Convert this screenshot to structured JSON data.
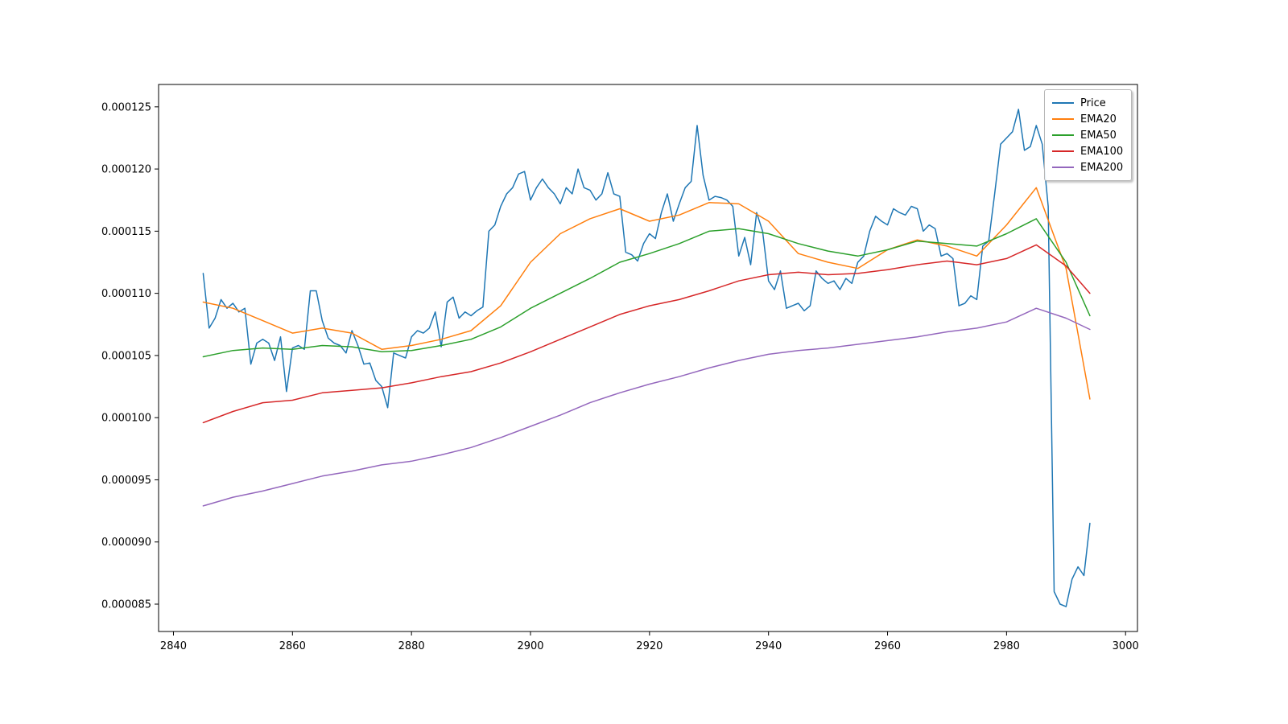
{
  "chart_data": {
    "type": "line",
    "title": "",
    "xlabel": "",
    "ylabel": "",
    "grid": false,
    "legend_position": "upper right",
    "xlim": [
      2837.5,
      3002
    ],
    "ylim": [
      8.28e-05,
      0.0001268
    ],
    "x_ticks": [
      2840,
      2860,
      2880,
      2900,
      2920,
      2940,
      2960,
      2980,
      3000
    ],
    "y_ticks": [
      8.5e-05,
      9e-05,
      9.5e-05,
      0.0001,
      0.000105,
      0.00011,
      0.000115,
      0.00012,
      0.000125
    ],
    "y_tick_labels": [
      "0.000085",
      "0.000090",
      "0.000095",
      "0.000100",
      "0.000105",
      "0.000110",
      "0.000115",
      "0.000120",
      "0.000125"
    ],
    "series": [
      {
        "name": "Price",
        "color": "#1f77b4",
        "x_start": 2845,
        "x_step": 1,
        "y": [
          0.0001116,
          0.0001072,
          0.000108,
          0.0001095,
          0.0001088,
          0.0001092,
          0.0001085,
          0.0001088,
          0.0001043,
          0.000106,
          0.0001063,
          0.000106,
          0.0001046,
          0.0001065,
          0.0001021,
          0.0001056,
          0.0001058,
          0.0001055,
          0.0001102,
          0.0001102,
          0.0001078,
          0.0001064,
          0.000106,
          0.0001058,
          0.0001052,
          0.000107,
          0.0001058,
          0.0001043,
          0.0001044,
          0.000103,
          0.0001025,
          0.0001008,
          0.0001052,
          0.000105,
          0.0001048,
          0.0001065,
          0.000107,
          0.0001068,
          0.0001072,
          0.0001085,
          0.0001057,
          0.0001093,
          0.0001097,
          0.000108,
          0.0001085,
          0.0001082,
          0.0001086,
          0.0001089,
          0.000115,
          0.0001155,
          0.000117,
          0.000118,
          0.0001185,
          0.0001196,
          0.0001198,
          0.0001175,
          0.0001185,
          0.0001192,
          0.0001185,
          0.000118,
          0.0001172,
          0.0001185,
          0.000118,
          0.00012,
          0.0001185,
          0.0001183,
          0.0001175,
          0.000118,
          0.0001197,
          0.000118,
          0.0001178,
          0.0001133,
          0.0001131,
          0.0001126,
          0.000114,
          0.0001148,
          0.0001144,
          0.0001165,
          0.000118,
          0.0001158,
          0.0001172,
          0.0001185,
          0.000119,
          0.0001235,
          0.0001195,
          0.0001175,
          0.0001178,
          0.0001177,
          0.0001175,
          0.000117,
          0.000113,
          0.0001145,
          0.0001123,
          0.0001165,
          0.000115,
          0.000111,
          0.0001103,
          0.0001118,
          0.0001088,
          0.000109,
          0.0001092,
          0.0001086,
          0.000109,
          0.0001118,
          0.0001112,
          0.0001108,
          0.000111,
          0.0001103,
          0.0001112,
          0.0001108,
          0.0001125,
          0.000113,
          0.000115,
          0.0001162,
          0.0001158,
          0.0001155,
          0.0001168,
          0.0001165,
          0.0001163,
          0.000117,
          0.0001168,
          0.000115,
          0.0001155,
          0.0001152,
          0.000113,
          0.0001132,
          0.0001128,
          0.000109,
          0.0001092,
          0.0001098,
          0.0001095,
          0.0001138,
          0.0001142,
          0.000118,
          0.000122,
          0.0001225,
          0.000123,
          0.0001248,
          0.0001215,
          0.0001218,
          0.0001235,
          0.000122,
          0.000117,
          8.6e-05,
          8.5e-05,
          8.48e-05,
          8.7e-05,
          8.8e-05,
          8.73e-05,
          9.15e-05
        ]
      },
      {
        "name": "EMA20",
        "color": "#ff7f0e",
        "x": [
          2845,
          2850,
          2855,
          2860,
          2865,
          2870,
          2875,
          2880,
          2885,
          2890,
          2895,
          2900,
          2905,
          2910,
          2915,
          2920,
          2925,
          2930,
          2935,
          2940,
          2945,
          2950,
          2955,
          2960,
          2965,
          2970,
          2975,
          2980,
          2985,
          2990,
          2994
        ],
        "y": [
          0.0001093,
          0.0001088,
          0.0001078,
          0.0001068,
          0.0001072,
          0.0001068,
          0.0001055,
          0.0001058,
          0.0001063,
          0.000107,
          0.000109,
          0.0001125,
          0.0001148,
          0.000116,
          0.0001168,
          0.0001158,
          0.0001163,
          0.0001173,
          0.0001172,
          0.0001158,
          0.0001132,
          0.0001125,
          0.000112,
          0.0001135,
          0.0001143,
          0.0001138,
          0.000113,
          0.0001155,
          0.0001185,
          0.000112,
          0.0001015
        ]
      },
      {
        "name": "EMA50",
        "color": "#2ca02c",
        "x": [
          2845,
          2850,
          2855,
          2860,
          2865,
          2870,
          2875,
          2880,
          2885,
          2890,
          2895,
          2900,
          2905,
          2910,
          2915,
          2920,
          2925,
          2930,
          2935,
          2940,
          2945,
          2950,
          2955,
          2960,
          2965,
          2970,
          2975,
          2980,
          2985,
          2990,
          2994
        ],
        "y": [
          0.0001049,
          0.0001054,
          0.0001056,
          0.0001055,
          0.0001058,
          0.0001057,
          0.0001053,
          0.0001054,
          0.0001058,
          0.0001063,
          0.0001073,
          0.0001088,
          0.00011,
          0.0001112,
          0.0001125,
          0.0001132,
          0.000114,
          0.000115,
          0.0001152,
          0.0001148,
          0.000114,
          0.0001134,
          0.000113,
          0.0001135,
          0.0001142,
          0.000114,
          0.0001138,
          0.0001148,
          0.000116,
          0.0001125,
          0.0001082
        ]
      },
      {
        "name": "EMA100",
        "color": "#d62728",
        "x": [
          2845,
          2850,
          2855,
          2860,
          2865,
          2870,
          2875,
          2880,
          2885,
          2890,
          2895,
          2900,
          2905,
          2910,
          2915,
          2920,
          2925,
          2930,
          2935,
          2940,
          2945,
          2950,
          2955,
          2960,
          2965,
          2970,
          2975,
          2980,
          2985,
          2990,
          2994
        ],
        "y": [
          9.96e-05,
          0.0001005,
          0.0001012,
          0.0001014,
          0.000102,
          0.0001022,
          0.0001024,
          0.0001028,
          0.0001033,
          0.0001037,
          0.0001044,
          0.0001053,
          0.0001063,
          0.0001073,
          0.0001083,
          0.000109,
          0.0001095,
          0.0001102,
          0.000111,
          0.0001115,
          0.0001117,
          0.0001115,
          0.0001116,
          0.0001119,
          0.0001123,
          0.0001126,
          0.0001123,
          0.0001128,
          0.0001139,
          0.0001122,
          0.00011
        ]
      },
      {
        "name": "EMA200",
        "color": "#9467bd",
        "x": [
          2845,
          2850,
          2855,
          2860,
          2865,
          2870,
          2875,
          2880,
          2885,
          2890,
          2895,
          2900,
          2905,
          2910,
          2915,
          2920,
          2925,
          2930,
          2935,
          2940,
          2945,
          2950,
          2955,
          2960,
          2965,
          2970,
          2975,
          2980,
          2985,
          2990,
          2994
        ],
        "y": [
          9.29e-05,
          9.36e-05,
          9.41e-05,
          9.47e-05,
          9.53e-05,
          9.57e-05,
          9.62e-05,
          9.65e-05,
          9.7e-05,
          9.76e-05,
          9.84e-05,
          9.93e-05,
          0.0001002,
          0.0001012,
          0.000102,
          0.0001027,
          0.0001033,
          0.000104,
          0.0001046,
          0.0001051,
          0.0001054,
          0.0001056,
          0.0001059,
          0.0001062,
          0.0001065,
          0.0001069,
          0.0001072,
          0.0001077,
          0.0001088,
          0.000108,
          0.0001071
        ]
      }
    ]
  }
}
